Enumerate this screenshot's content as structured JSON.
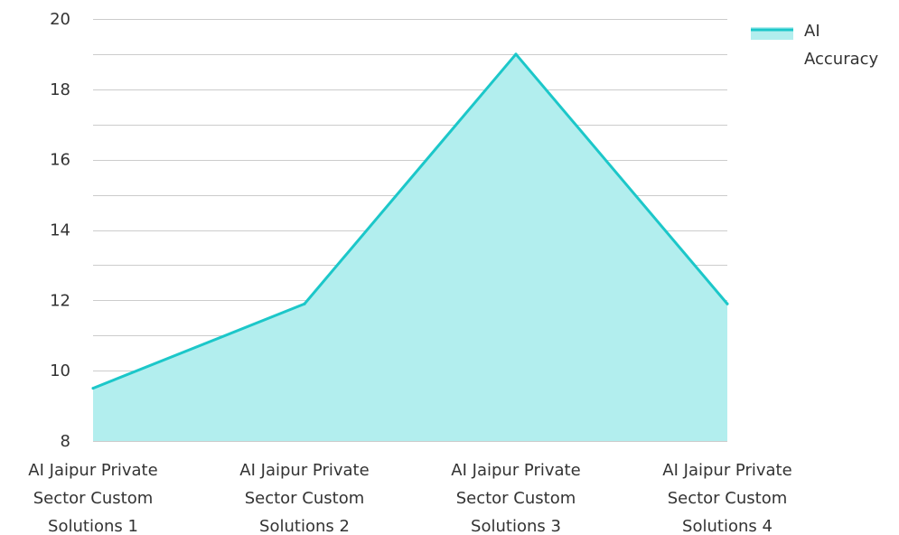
{
  "chart_data": {
    "type": "area",
    "title": "",
    "xlabel": "",
    "ylabel": "",
    "categories": [
      [
        "AI Jaipur Private",
        "Sector Custom",
        "Solutions 1"
      ],
      [
        "AI Jaipur Private",
        "Sector Custom",
        "Solutions 2"
      ],
      [
        "AI Jaipur Private",
        "Sector Custom",
        "Solutions 3"
      ],
      [
        "AI Jaipur Private",
        "Sector Custom",
        "Solutions 4"
      ]
    ],
    "series": [
      {
        "name": "AI Accuracy",
        "legend_lines": [
          "AI",
          "Accuracy"
        ],
        "values": [
          9.5,
          11.9,
          19.0,
          11.9
        ],
        "line_color": "#1cc7c9",
        "fill_color": "#b2eeee"
      }
    ],
    "ylim": [
      8,
      20
    ],
    "yticks": [
      8,
      10,
      12,
      14,
      16,
      18,
      20
    ],
    "minor_grid_step": 1,
    "grid": true,
    "legend_position": "top-right",
    "gridline_color": "#cccccc"
  }
}
